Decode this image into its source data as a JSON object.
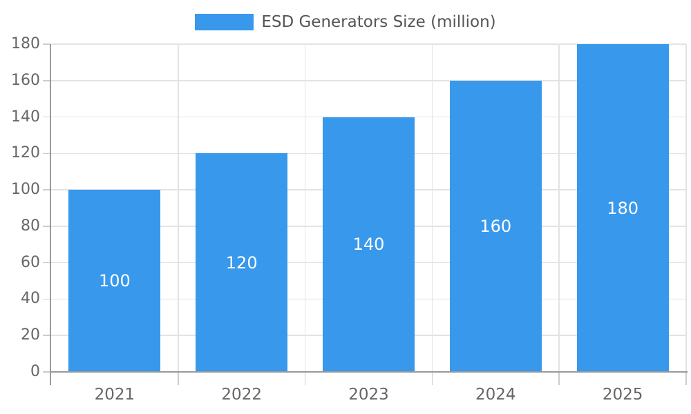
{
  "chart_data": {
    "type": "bar",
    "title": "",
    "legend": {
      "label": "ESD Generators Size (million)",
      "position": "top-center"
    },
    "categories": [
      "2021",
      "2022",
      "2023",
      "2024",
      "2025"
    ],
    "series": [
      {
        "name": "ESD Generators Size (million)",
        "values": [
          100,
          120,
          140,
          160,
          180
        ]
      }
    ],
    "bar_value_labels": [
      "100",
      "120",
      "140",
      "160",
      "180"
    ],
    "xlabel": "",
    "ylabel": "",
    "ylim": [
      0,
      180
    ],
    "ytick_step": 20,
    "ytick_labels": [
      "0",
      "20",
      "40",
      "60",
      "80",
      "100",
      "120",
      "140",
      "160",
      "180"
    ],
    "grid": true,
    "colors": {
      "bar": "#3898EC",
      "grid": "#e3e3e3",
      "axis_line": "#999999",
      "tick": "#cccccc",
      "axis_label_text": "#666666",
      "legend_text": "#555555",
      "bar_label_text": "#ffffff",
      "background": "#ffffff"
    }
  }
}
